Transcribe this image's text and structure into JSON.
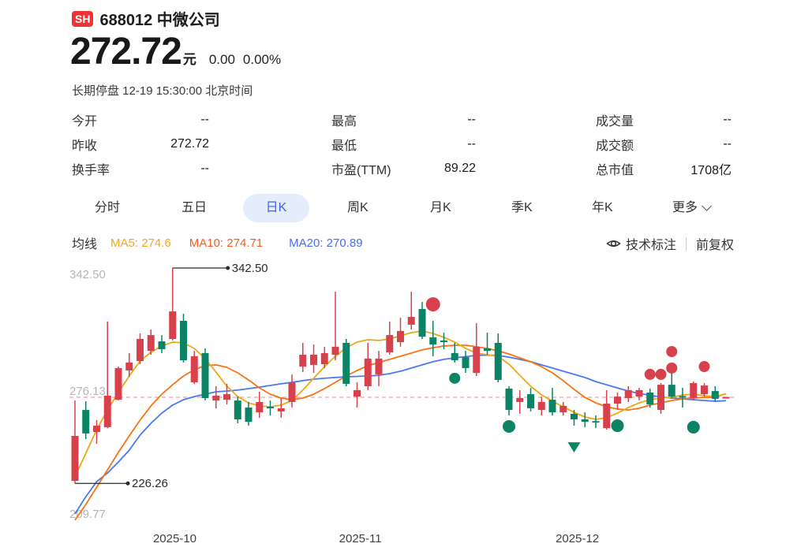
{
  "header": {
    "exchange_badge": "SH",
    "title": "688012 中微公司",
    "price": "272.72",
    "currency": "元",
    "change": "0.00",
    "change_pct": "0.00%",
    "status": "长期停盘 12-19 15:30:00 北京时间"
  },
  "stats": {
    "cols": [
      {
        "items": [
          {
            "label": "今开",
            "value": "--"
          },
          {
            "label": "昨收",
            "value": "272.72"
          },
          {
            "label": "换手率",
            "value": "--"
          }
        ]
      },
      {
        "items": [
          {
            "label": "最高",
            "value": "--"
          },
          {
            "label": "最低",
            "value": "--"
          },
          {
            "label": "市盈(TTM)",
            "value": "89.22"
          }
        ]
      },
      {
        "items": [
          {
            "label": "成交量",
            "value": "--"
          },
          {
            "label": "成交额",
            "value": "--"
          },
          {
            "label": "总市值",
            "value": "1708亿"
          }
        ]
      }
    ]
  },
  "tabs": {
    "items": [
      "分时",
      "五日",
      "日K",
      "周K",
      "月K",
      "季K",
      "年K"
    ],
    "active": "日K",
    "more": "更多"
  },
  "ma_bar": {
    "label": "均线",
    "ma5": "MA5: 274.6",
    "ma10": "MA10: 274.71",
    "ma20": "MA20: 270.89",
    "tool1": "技术标注",
    "tool2": "前复权"
  },
  "chart_data": {
    "type": "candlestick",
    "y_ticks": [
      342.5,
      276.13,
      209.77
    ],
    "prev_close": 272.72,
    "x_labels": [
      {
        "text": "2025-10",
        "index": 9.2
      },
      {
        "text": "2025-11",
        "index": 26.3
      },
      {
        "text": "2025-12",
        "index": 46.3
      }
    ],
    "candle_format": "direction(r=up/g=down), high, low, body_top, body_bottom",
    "candles": [
      [
        "r",
        271.0,
        226.26,
        251.9,
        227.6
      ],
      [
        "g",
        270.6,
        250.2,
        265.9,
        253.2
      ],
      [
        "r",
        260.4,
        247.6,
        257.4,
        254.0
      ],
      [
        "r",
        313.6,
        256.1,
        273.6,
        256.6
      ],
      [
        "r",
        289.3,
        271.0,
        288.5,
        271.4
      ],
      [
        "r",
        296.6,
        283.8,
        291.5,
        287.2
      ],
      [
        "r",
        307.2,
        290.6,
        304.2,
        292.3
      ],
      [
        "r",
        309.3,
        295.7,
        306.3,
        297.8
      ],
      [
        "g",
        306.3,
        296.6,
        302.9,
        298.7
      ],
      [
        "r",
        342.5,
        303.4,
        319.1,
        304.2
      ],
      [
        "g",
        317.8,
        291.5,
        314.0,
        292.7
      ],
      [
        "r",
        297.8,
        280.0,
        294.9,
        280.8
      ],
      [
        "g",
        299.1,
        271.0,
        296.6,
        272.3
      ],
      [
        "r",
        278.7,
        266.8,
        273.6,
        271.0
      ],
      [
        "r",
        280.0,
        268.9,
        274.4,
        271.4
      ],
      [
        "g",
        273.1,
        258.7,
        271.0,
        260.8
      ],
      [
        "g",
        270.2,
        257.4,
        267.2,
        259.5
      ],
      [
        "r",
        275.7,
        261.7,
        270.2,
        264.6
      ],
      [
        "g",
        271.0,
        262.9,
        267.6,
        266.8
      ],
      [
        "r",
        272.3,
        261.7,
        266.8,
        265.1
      ],
      [
        "r",
        285.1,
        267.2,
        280.8,
        270.2
      ],
      [
        "r",
        302.1,
        286.3,
        295.7,
        289.3
      ],
      [
        "r",
        301.2,
        285.9,
        295.7,
        290.2
      ],
      [
        "r",
        300.0,
        288.5,
        296.6,
        290.6
      ],
      [
        "r",
        329.7,
        292.7,
        300.0,
        295.7
      ],
      [
        "g",
        304.2,
        278.7,
        302.1,
        280.0
      ],
      [
        "r",
        280.8,
        267.2,
        276.6,
        273.1
      ],
      [
        "r",
        302.1,
        276.6,
        293.6,
        278.7
      ],
      [
        "r",
        297.8,
        278.7,
        293.6,
        285.1
      ],
      [
        "r",
        313.6,
        295.7,
        306.3,
        297.0
      ],
      [
        "r",
        315.7,
        300.0,
        308.5,
        302.5
      ],
      [
        "r",
        329.7,
        309.3,
        316.1,
        311.9
      ],
      [
        "g",
        324.2,
        304.2,
        320.4,
        305.5
      ],
      [
        "g",
        314.0,
        294.9,
        305.1,
        301.2
      ],
      [
        "g",
        307.6,
        298.7,
        303.4,
        302.5
      ],
      [
        "g",
        302.1,
        291.5,
        296.6,
        292.7
      ],
      [
        "g",
        297.8,
        285.9,
        294.4,
        288.5
      ],
      [
        "r",
        312.7,
        284.2,
        300.0,
        285.9
      ],
      [
        "g",
        307.6,
        295.7,
        299.1,
        297.8
      ],
      [
        "g",
        307.2,
        280.8,
        302.1,
        282.1
      ],
      [
        "g",
        278.7,
        262.9,
        277.4,
        265.9
      ],
      [
        "r",
        276.6,
        263.8,
        272.3,
        270.2
      ],
      [
        "g",
        277.8,
        265.1,
        274.4,
        266.8
      ],
      [
        "r",
        273.1,
        262.9,
        270.2,
        265.9
      ],
      [
        "g",
        277.8,
        262.9,
        271.4,
        264.6
      ],
      [
        "r",
        270.2,
        262.9,
        268.1,
        264.6
      ],
      [
        "g",
        265.9,
        257.4,
        263.8,
        260.8
      ],
      [
        "g",
        264.6,
        256.6,
        260.8,
        259.5
      ],
      [
        "g",
        262.9,
        256.1,
        259.9,
        259.1
      ],
      [
        "r",
        276.6,
        255.3,
        269.3,
        256.1
      ],
      [
        "r",
        275.3,
        265.9,
        273.1,
        269.3
      ],
      [
        "r",
        278.7,
        270.2,
        276.6,
        272.3
      ],
      [
        "r",
        277.8,
        271.0,
        276.6,
        273.1
      ],
      [
        "g",
        277.4,
        267.2,
        275.3,
        268.9
      ],
      [
        "r",
        280.4,
        263.8,
        279.5,
        265.9
      ],
      [
        "g",
        286.3,
        272.3,
        279.5,
        273.1
      ],
      [
        "g",
        277.8,
        267.2,
        273.4,
        272.5
      ],
      [
        "r",
        281.2,
        271.0,
        280.4,
        272.3
      ],
      [
        "r",
        280.4,
        273.1,
        279.1,
        274.4
      ],
      [
        "g",
        278.7,
        270.2,
        276.1,
        271.9
      ],
      [
        "r",
        272.9,
        272.5,
        272.9,
        272.5
      ]
    ],
    "ma5": [
      229.8,
      242.5,
      255.3,
      265.9,
      275.3,
      284.2,
      292.3,
      297.0,
      300.4,
      302.5,
      302.1,
      299.1,
      293.6,
      286.3,
      278.7,
      273.1,
      269.7,
      268.1,
      267.6,
      268.5,
      271.0,
      276.6,
      283.0,
      289.3,
      294.9,
      299.5,
      302.5,
      303.8,
      303.4,
      304.2,
      305.9,
      307.6,
      308.5,
      307.2,
      305.1,
      302.5,
      299.1,
      296.6,
      295.7,
      294.9,
      290.6,
      284.6,
      278.7,
      274.0,
      270.6,
      267.6,
      264.6,
      262.1,
      260.8,
      261.7,
      264.2,
      267.2,
      269.7,
      271.4,
      272.3,
      272.7,
      274.0,
      274.4,
      273.6,
      273.1,
      274.6
    ],
    "ma10": [
      206.4,
      214.9,
      224.2,
      233.6,
      243.0,
      251.9,
      260.4,
      268.1,
      274.4,
      279.5,
      284.2,
      287.6,
      289.8,
      290.2,
      288.9,
      285.9,
      282.1,
      277.8,
      274.4,
      272.3,
      271.4,
      272.3,
      274.4,
      277.4,
      280.8,
      284.2,
      287.2,
      289.8,
      291.5,
      293.2,
      294.9,
      296.6,
      298.3,
      299.5,
      300.4,
      300.8,
      300.8,
      300.0,
      299.1,
      297.8,
      296.1,
      294.0,
      291.9,
      289.3,
      285.9,
      281.7,
      277.0,
      272.7,
      269.7,
      267.6,
      266.4,
      265.9,
      266.8,
      268.5,
      269.7,
      271.0,
      271.9,
      272.3,
      272.7,
      272.7,
      274.71
    ],
    "ma20": [
      209.8,
      219.1,
      227.2,
      231.9,
      237.8,
      244.2,
      252.3,
      258.7,
      264.2,
      268.5,
      271.4,
      273.1,
      274.4,
      275.7,
      276.1,
      276.6,
      277.4,
      278.2,
      279.1,
      280.0,
      280.8,
      281.7,
      282.5,
      283.0,
      283.4,
      283.8,
      284.0,
      284.2,
      284.6,
      285.5,
      286.8,
      288.5,
      290.2,
      291.9,
      293.2,
      294.0,
      294.7,
      295.3,
      295.5,
      295.3,
      294.4,
      293.2,
      291.9,
      290.2,
      288.5,
      286.8,
      285.1,
      283.4,
      281.2,
      279.5,
      277.8,
      276.1,
      274.8,
      273.8,
      272.9,
      272.3,
      271.9,
      271.4,
      271.0,
      270.6,
      270.89
    ],
    "markers_red": [
      [
        33,
        322.9,
        9
      ],
      [
        53,
        285.1,
        7
      ],
      [
        54,
        285.1,
        7
      ],
      [
        55,
        288.5,
        7
      ],
      [
        55,
        297.4,
        7
      ],
      [
        58,
        289.3,
        7
      ]
    ],
    "markers_green": [
      [
        35,
        283.0,
        7
      ],
      [
        40,
        257.0,
        8
      ],
      [
        50,
        257.4,
        8
      ],
      [
        57,
        256.6,
        8
      ]
    ],
    "triangle_down_green": [
      46,
      245.9
    ],
    "annotations": [
      {
        "text": "342.50",
        "index": 9,
        "price": 342.5,
        "leader_len": 70
      },
      {
        "text": "226.26",
        "index": 0,
        "price": 226.26,
        "leader_len": 67
      }
    ],
    "colors": {
      "up": "#d8404c",
      "down": "#0b8466",
      "ma5": "#f0a711",
      "ma10": "#f97314",
      "ma20": "#4a78ef",
      "prev_close_line": "#f0a0a0",
      "tick_label": "#b5b5b5",
      "annotation": "#2b2b2b",
      "x_label": "#3f3f3f"
    },
    "legend": {
      "ma5": 274.6,
      "ma10": 274.71,
      "ma20": 270.89
    }
  }
}
